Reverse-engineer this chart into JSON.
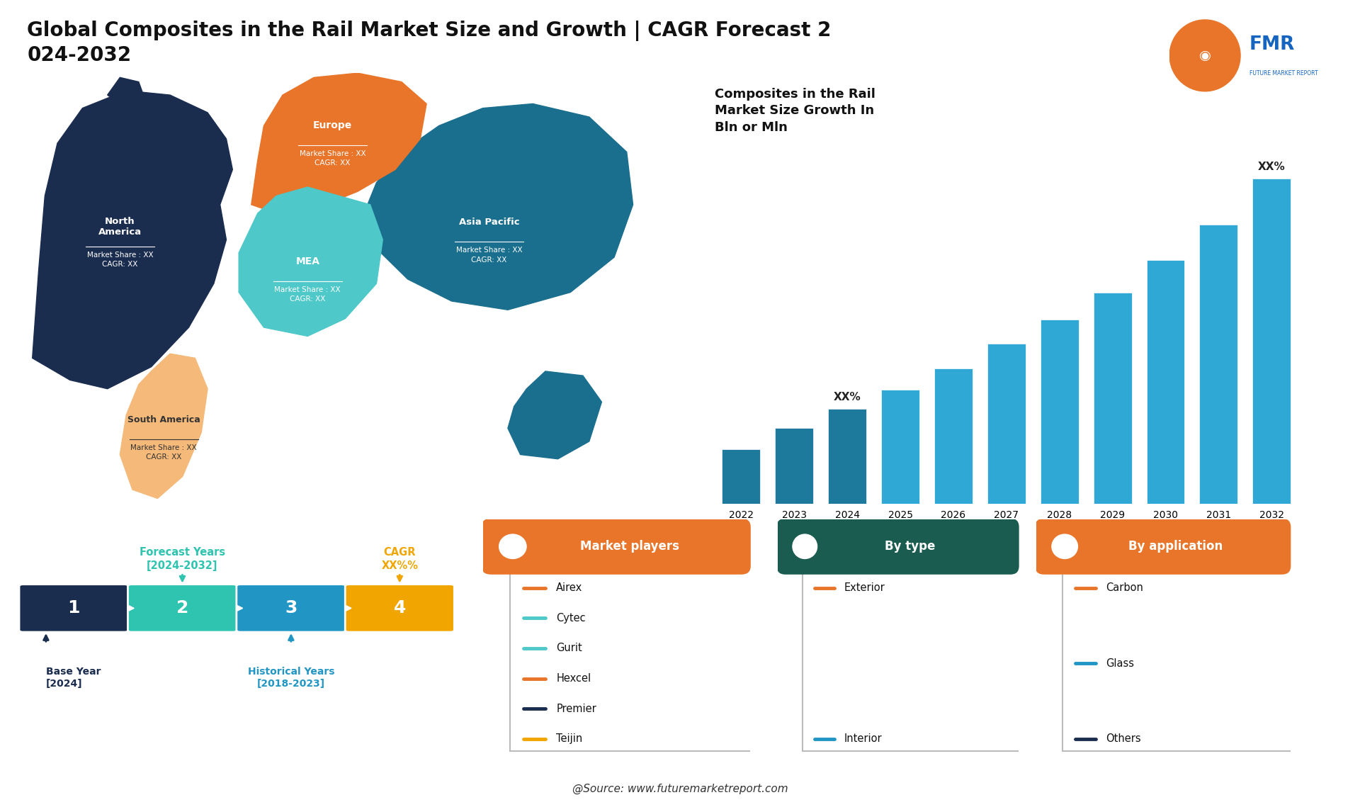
{
  "title": "Global Composites in the Rail Market Size and Growth | CAGR Forecast 2\n024-2032",
  "title_fontsize": 20,
  "background_color": "#ffffff",
  "bar_years": [
    "2022",
    "2023",
    "2024",
    "2025",
    "2026",
    "2027",
    "2028",
    "2029",
    "2030",
    "2031",
    "2032"
  ],
  "bar_values": [
    1.0,
    1.4,
    1.75,
    2.1,
    2.5,
    2.95,
    3.4,
    3.9,
    4.5,
    5.15,
    6.0
  ],
  "bar_color_dark": "#1e7a9c",
  "bar_color_light": "#2fa8d5",
  "bar_chart_title": "Composites in the Rail\nMarket Size Growth In\nBln or Mln",
  "bar_annotation_2024": "XX%",
  "bar_annotation_2032": "XX%",
  "na_color": "#1b2d4f",
  "eu_color": "#e8752a",
  "ap_color": "#1a6e8e",
  "mea_color": "#4ec8c8",
  "sa_color": "#f5b97a",
  "aus_color": "#1a6e8e",
  "timeline_colors": [
    "#1b2d4f",
    "#2ec4b0",
    "#2196c4",
    "#f0a500"
  ],
  "timeline_labels": [
    "1",
    "2",
    "3",
    "4"
  ],
  "forecast_years_label": "Forecast Years\n[2024-2032]",
  "forecast_color": "#2ec4b0",
  "cagr_label": "CAGR\nXX%%",
  "cagr_color": "#f0a500",
  "base_year_label": "Base Year\n[2024]",
  "historical_years_label": "Historical Years\n[2018-2023]",
  "historical_color": "#2196c4",
  "dark_navy": "#1b2d4f",
  "market_players_label": "Market players",
  "market_players_color": "#e8752a",
  "market_players": [
    "Airex",
    "Cytec",
    "Gurit",
    "Hexcel",
    "Premier",
    "Teijin"
  ],
  "market_players_bullet_colors": [
    "#e8752a",
    "#4ec8c8",
    "#4ec8c8",
    "#e8752a",
    "#1b2d4f",
    "#f0a500"
  ],
  "by_type_label": "By type",
  "by_type_color": "#1a5c50",
  "by_type_items": [
    "Exterior",
    "Interior"
  ],
  "by_type_bullet_colors": [
    "#e8752a",
    "#2196c4"
  ],
  "by_app_label": "By application",
  "by_app_color": "#e8752a",
  "by_app_items": [
    "Carbon",
    "Glass",
    "Others"
  ],
  "by_app_bullet_colors": [
    "#e8752a",
    "#2196c4",
    "#1b2d4f"
  ],
  "source_text": "@Source: www.futuremarketreport.com"
}
